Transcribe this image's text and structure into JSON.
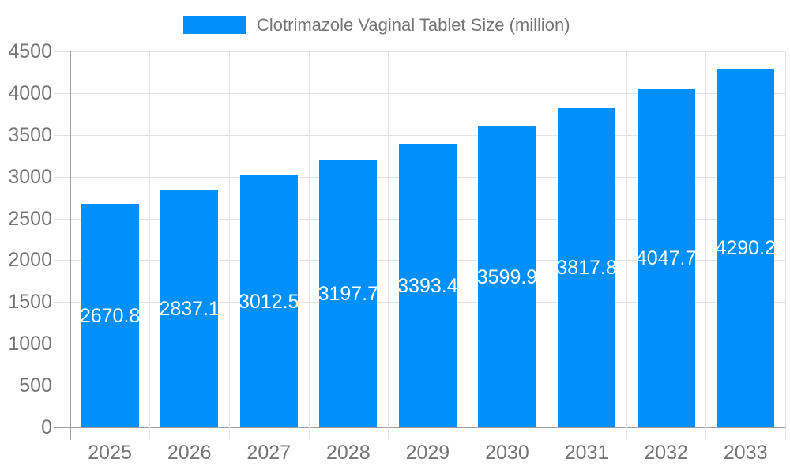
{
  "chart_data": {
    "type": "bar",
    "title": "Clotrimazole Vaginal Tablet Size (million)",
    "legend": {
      "position": "top",
      "items": [
        {
          "label": "Clotrimazole Vaginal Tablet Size (million)",
          "color": "#008FFB"
        }
      ]
    },
    "categories": [
      "2025",
      "2026",
      "2027",
      "2028",
      "2029",
      "2030",
      "2031",
      "2032",
      "2033"
    ],
    "series": [
      {
        "name": "Clotrimazole Vaginal Tablet Size (million)",
        "values": [
          2670.8,
          2837.1,
          3012.5,
          3197.7,
          3393.4,
          3599.9,
          3817.8,
          4047.7,
          4290.2
        ]
      }
    ],
    "data_labels": [
      "2670.8",
      "2837.1",
      "3012.5",
      "3197.7",
      "3393.4",
      "3599.9",
      "3817.8",
      "4047.7",
      "4290.2"
    ],
    "xlabel": "",
    "ylabel": "",
    "ylim": [
      0,
      4500
    ],
    "y_ticks": [
      0,
      500,
      1000,
      1500,
      2000,
      2500,
      3000,
      3500,
      4000,
      4500
    ],
    "grid": true,
    "colors": {
      "bar": "#008FFB",
      "axis_text": "#757575",
      "grid_line": "#e2e2e2",
      "axis_line": "#9e9e9e",
      "data_label_text": "#ffffff",
      "background": "#ffffff"
    }
  }
}
